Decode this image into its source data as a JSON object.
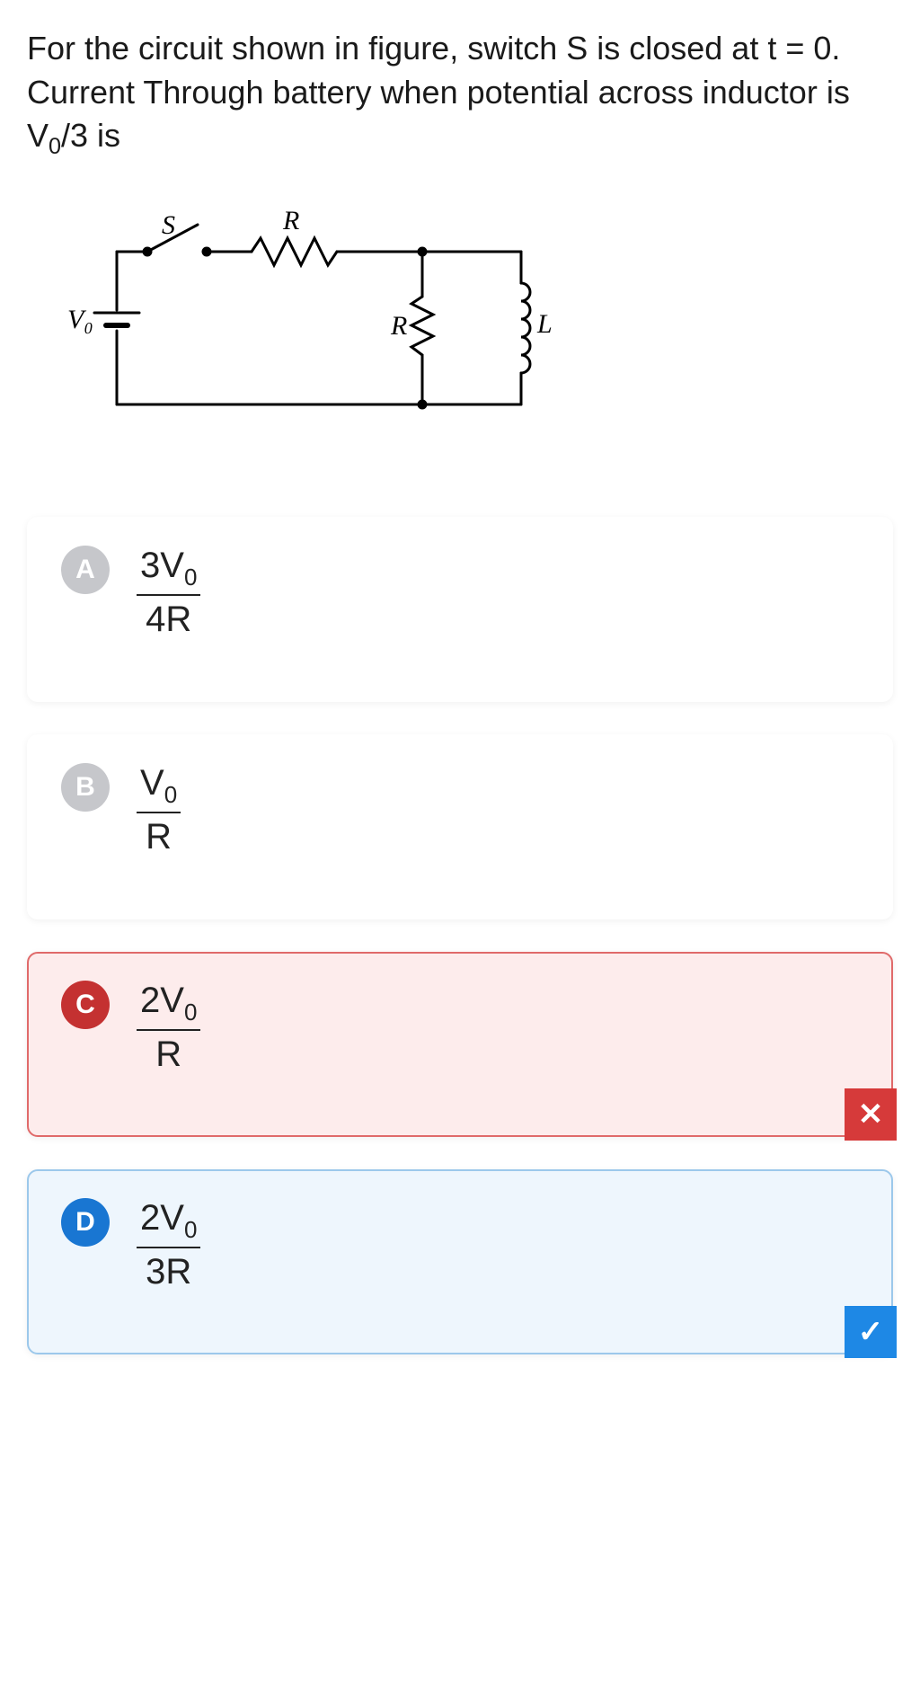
{
  "question": {
    "text_html": "For the circuit shown in figure, switch S is closed at t = 0. Current Through battery when potential across inductor is V<sub>0</sub>/3 is"
  },
  "circuit": {
    "labels": {
      "source": "V₀",
      "switch": "S",
      "resistor_top": "R",
      "resistor_right": "R",
      "inductor": "L"
    },
    "stroke": "#000000",
    "stroke_width": 3,
    "font_size": 30,
    "font_style": "italic"
  },
  "options": [
    {
      "letter": "A",
      "num": "3V<sub>0</sub>",
      "den": "4R",
      "state": "neutral",
      "badge_color": "#c6c7cb"
    },
    {
      "letter": "B",
      "num": "V<sub>0</sub>",
      "den": "R",
      "state": "neutral",
      "badge_color": "#c6c7cb"
    },
    {
      "letter": "C",
      "num": "2V<sub>0</sub>",
      "den": "R",
      "state": "incorrect",
      "badge_color": "#c43131",
      "icon": "✕",
      "icon_bg": "#d63a3a"
    },
    {
      "letter": "D",
      "num": "2V<sub>0</sub>",
      "den": "3R",
      "state": "correct",
      "badge_color": "#1976d2",
      "icon": "✓",
      "icon_bg": "#1e88e5"
    }
  ],
  "colors": {
    "page_bg": "#ffffff",
    "text": "#1a1a1a",
    "option_bg": "#ffffff",
    "incorrect_bg": "#fdecec",
    "incorrect_border": "#e06a6a",
    "correct_bg": "#eef6fd",
    "correct_border": "#9cc8eb"
  }
}
